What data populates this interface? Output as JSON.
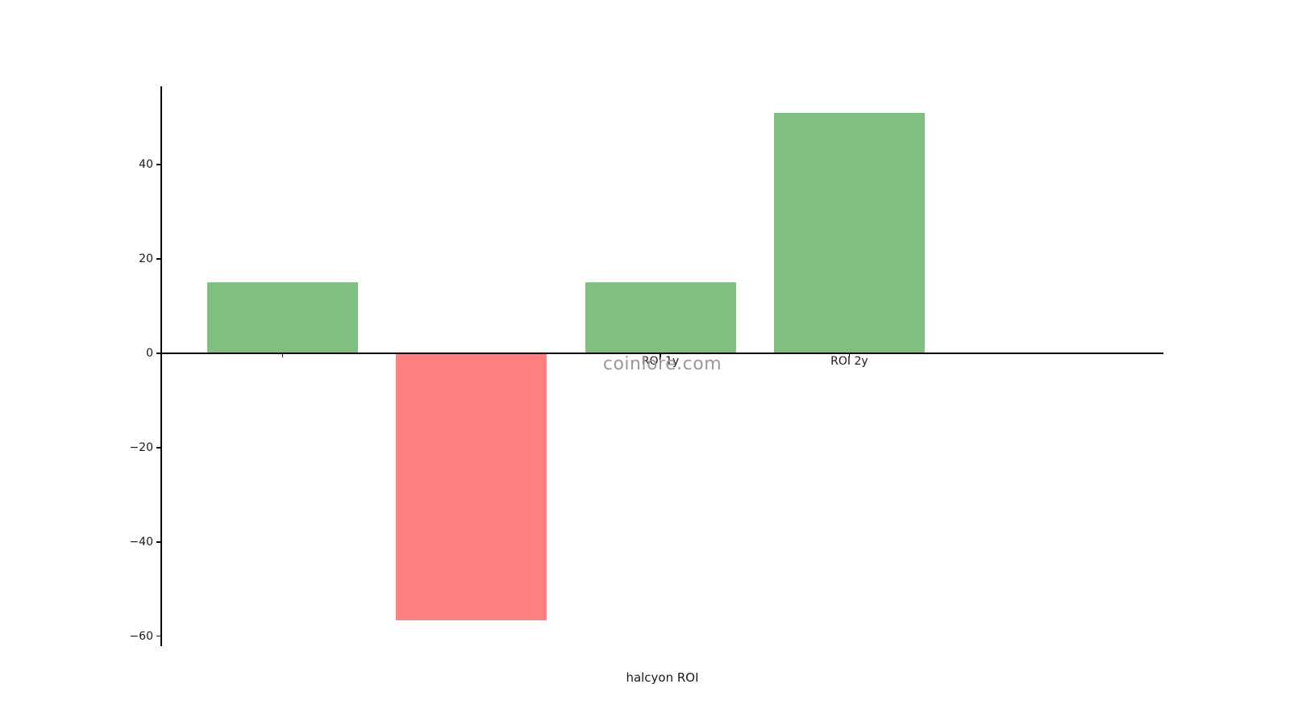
{
  "page": {
    "background_color": "#ffffff"
  },
  "watermark": {
    "text": "coinlore.com",
    "color": "#999999"
  },
  "chart_data": {
    "type": "bar",
    "title": "",
    "xlabel": "halcyon ROI",
    "ylabel": "",
    "categories": [
      "",
      "",
      "ROI 1y",
      "ROI 2y"
    ],
    "values": [
      15,
      -56.7,
      15,
      51
    ],
    "bar_colors": [
      "#7fbf7f",
      "#ff7f7f",
      "#7fbf7f",
      "#7fbf7f"
    ],
    "positive_color": "#7fbf7f",
    "negative_color": "#ff7f7f",
    "yticks": [
      40,
      20,
      0,
      -20,
      -40,
      -60
    ],
    "ytick_labels": [
      "40",
      "20",
      "0",
      "−20",
      "−40",
      "−60"
    ],
    "ylim": [
      -62.1,
      56.6
    ],
    "x_tick_visible": [
      true,
      false,
      true,
      true
    ],
    "grid": false,
    "legend": null,
    "axis_color": "#000000",
    "text_color": "#1a1a1a"
  }
}
